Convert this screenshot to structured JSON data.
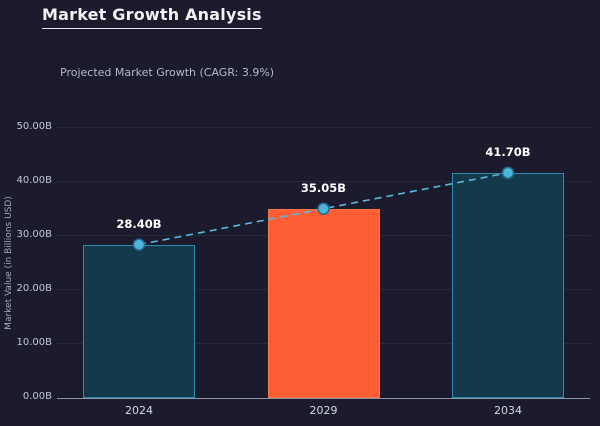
{
  "header": {
    "title": "Market Growth Analysis",
    "subtitle": "Projected Market Growth (CAGR: 3.9%)"
  },
  "chart_data": {
    "type": "bar",
    "title": "Market Growth Analysis",
    "subtitle": "Projected Market Growth (CAGR: 3.9%)",
    "cagr": "3.9%",
    "categories": [
      "2024",
      "2029",
      "2034"
    ],
    "values": [
      28.4,
      35.05,
      41.7
    ],
    "value_labels": [
      "28.40B",
      "35.05B",
      "41.70B"
    ],
    "xlabel": "",
    "ylabel": "Market Value (in Billions USD)",
    "ylim": [
      0,
      50
    ],
    "yticks": [
      0,
      10,
      20,
      30,
      40,
      50
    ],
    "ytick_labels": [
      "0.00B",
      "10.00B",
      "20.00B",
      "30.00B",
      "40.00B",
      "50.00B"
    ],
    "grid": true,
    "legend": "none",
    "background": "#1b1b2d",
    "bar_colors": [
      "#14394b",
      "#ff5e35",
      "#14394b"
    ],
    "bar_border_colors": [
      "#2d89ad",
      "#ff7247",
      "#2d89ad"
    ],
    "trend": {
      "type": "dashed-line",
      "color": "#59b8dd",
      "marker_fill": "#4fb3da",
      "marker_stroke": "#1e6d8c",
      "values": [
        28.4,
        35.05,
        41.7
      ]
    }
  }
}
